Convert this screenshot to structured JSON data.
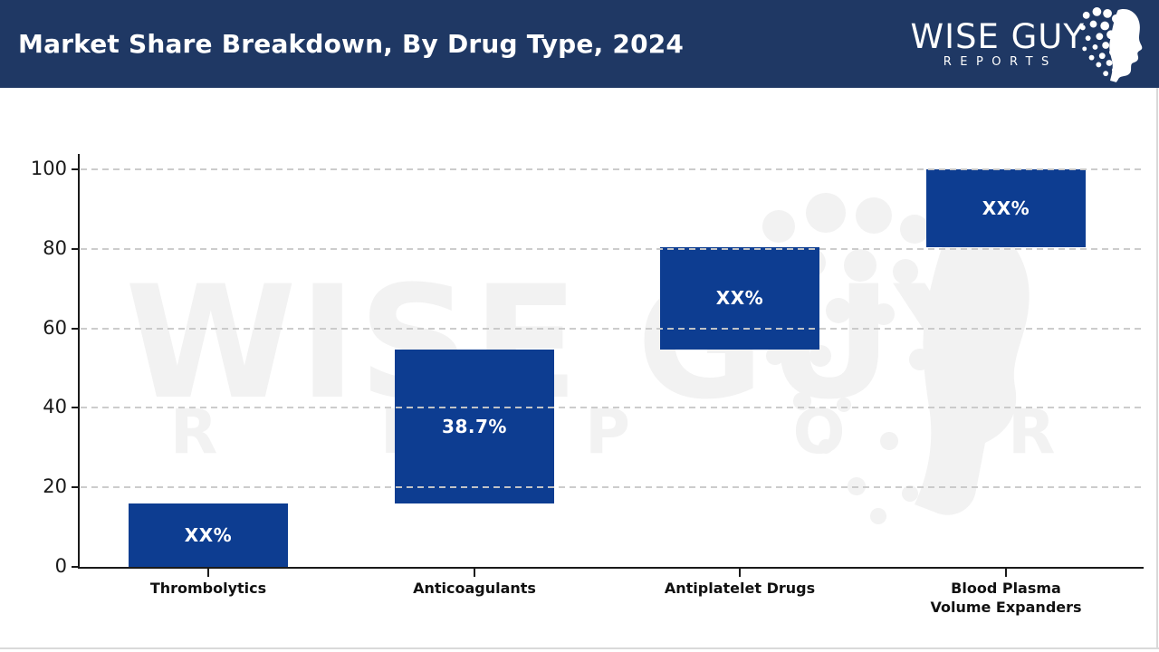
{
  "header": {
    "title": "Market Share Breakdown, By Drug Type, 2024",
    "logo": {
      "line1": "WISE GUY",
      "line2": "REPORTS",
      "head_icon": "dotted-head-profile"
    }
  },
  "watermark": {
    "line1": "WISE GUY",
    "line2": "R E P O R T S"
  },
  "colors": {
    "header_bg": "#1f3864",
    "bar": "#0d3d91",
    "bar_label": "#ffffff",
    "watermark": "#f2f2f2",
    "gridline": "#c9c9c9",
    "axis": "#1a1a1a",
    "hairline": "#d9d9d9",
    "title_text": "#ffffff"
  },
  "chart_data": {
    "type": "bar",
    "subtype": "waterfall",
    "title": "Market Share Breakdown, By Drug Type, 2024",
    "categories": [
      "Thrombolytics",
      "Anticoagulants",
      "Antiplatelet Drugs",
      "Blood Plasma\nVolume Expanders"
    ],
    "segments": [
      {
        "category": "Thrombolytics",
        "start": 0,
        "end": 16,
        "value_est": 16,
        "value_label": "XX%"
      },
      {
        "category": "Anticoagulants",
        "start": 16,
        "end": 54.7,
        "value_est": 38.7,
        "value_label": "38.7%"
      },
      {
        "category": "Antiplatelet Drugs",
        "start": 54.7,
        "end": 80.5,
        "value_est": 25.8,
        "value_label": "XX%"
      },
      {
        "category": "Blood Plasma Volume Expanders",
        "start": 80.5,
        "end": 100,
        "value_est": 19.5,
        "value_label": "XX%"
      }
    ],
    "xlabel": "",
    "ylabel": "",
    "ylim": [
      0,
      100
    ],
    "yticks": [
      0,
      20,
      40,
      60,
      80,
      100
    ],
    "grid": "horizontal-dashed",
    "legend": null,
    "bar_color": "#0d3d91",
    "bar_label_color": "#ffffff"
  }
}
